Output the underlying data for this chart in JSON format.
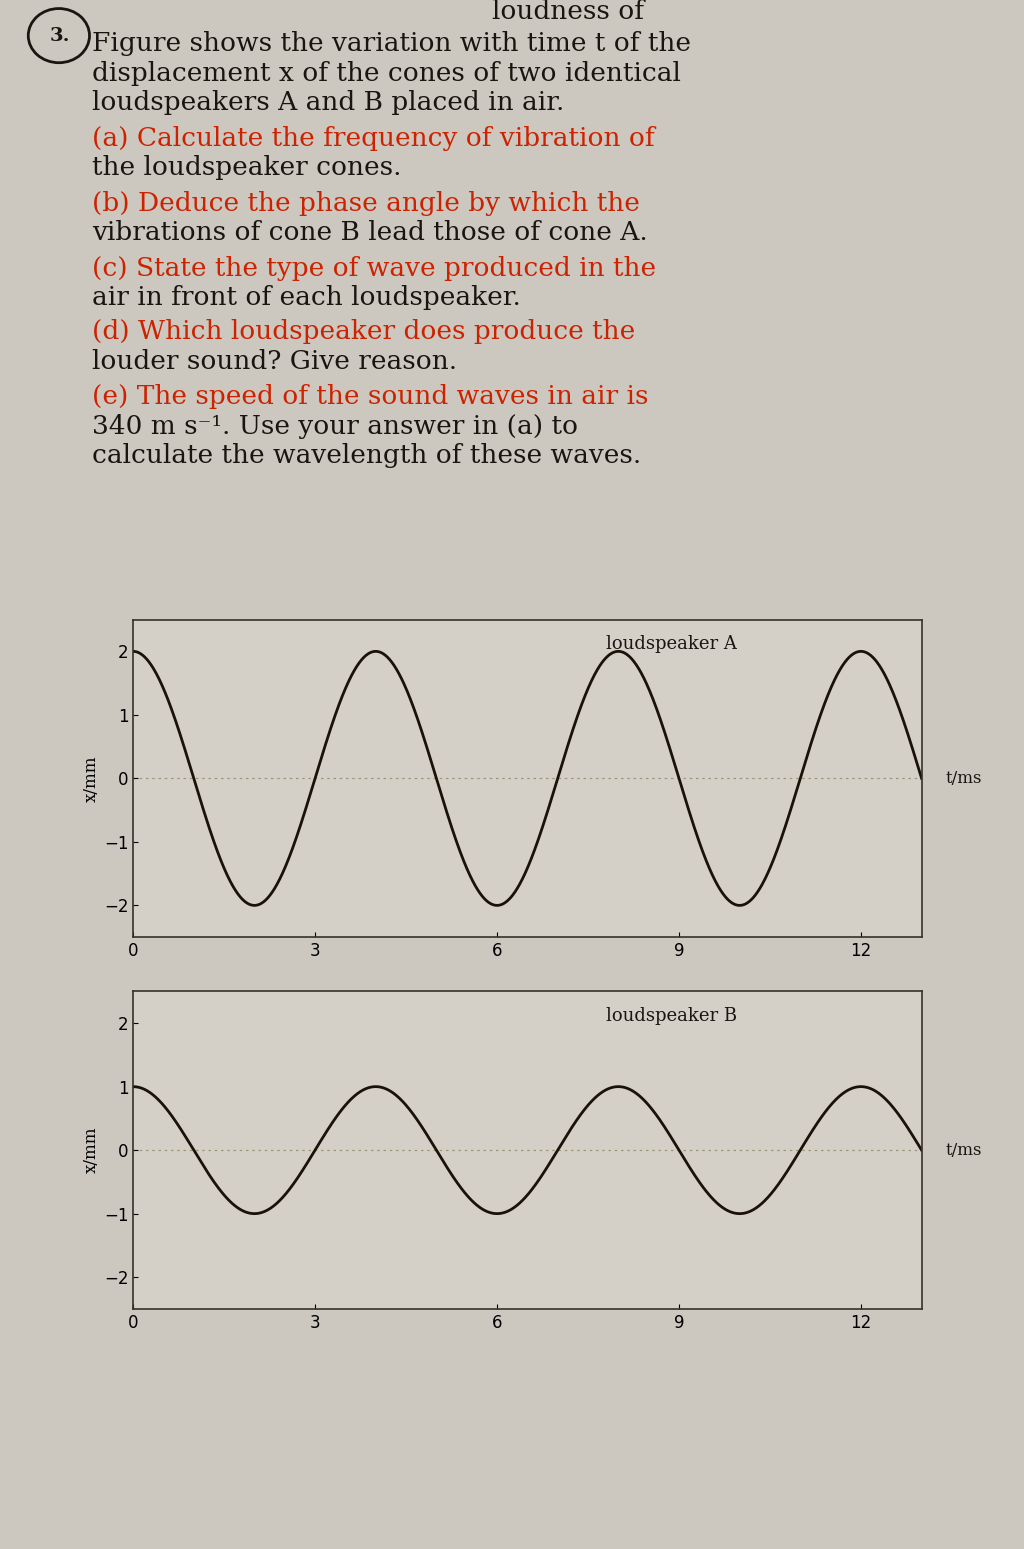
{
  "background_color": "#ccc8c0",
  "graph_bg_A": "#c8c4bc",
  "graph_bg_B": "#d0ccc4",
  "text_dark": "#1a1510",
  "text_red_a": "#cc2200",
  "text_red_b": "#cc2200",
  "text_red_c": "#cc2200",
  "text_red_d": "#cc2200",
  "text_red_e": "#cc2200",
  "line_color": "#1a1208",
  "dotted_color": "#999977",
  "graph_A": {
    "amplitude": 2.0,
    "period": 4.0,
    "phase_rad": 0.0,
    "t_start": 0,
    "t_end": 13,
    "xlim": [
      0,
      13
    ],
    "ylim": [
      -2.5,
      2.5
    ],
    "yticks": [
      -2,
      -1,
      0,
      1,
      2
    ],
    "xticks": [
      0,
      3,
      6,
      9,
      12
    ],
    "ylabel": "x/mm",
    "xlabel": "t/ms",
    "label": "loudspeaker A"
  },
  "graph_B": {
    "amplitude": 1.0,
    "period": 4.0,
    "phase_rad": 1.5707963,
    "t_start": 0,
    "t_end": 13,
    "xlim": [
      0,
      13
    ],
    "ylim": [
      -2.5,
      2.5
    ],
    "yticks": [
      -2,
      -1,
      0,
      1,
      2
    ],
    "xticks": [
      0,
      3,
      6,
      9,
      12
    ],
    "ylabel": "x/mm",
    "xlabel": "t/ms",
    "label": "loudspeaker B"
  }
}
